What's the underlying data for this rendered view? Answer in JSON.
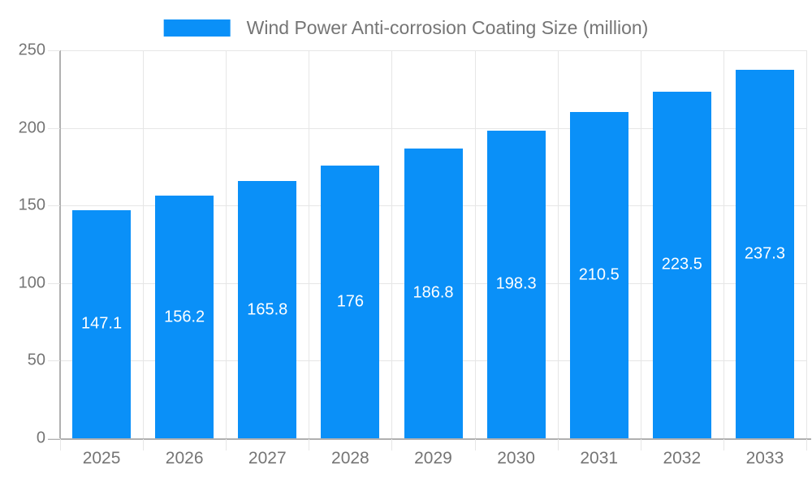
{
  "chart_data": {
    "type": "bar",
    "title": "Wind Power Anti-corrosion Coating Size (million)",
    "categories": [
      "2025",
      "2026",
      "2027",
      "2028",
      "2029",
      "2030",
      "2031",
      "2032",
      "2033"
    ],
    "values": [
      147.1,
      156.2,
      165.8,
      176,
      186.8,
      198.3,
      210.5,
      223.5,
      237.3
    ],
    "value_labels": [
      "147.1",
      "156.2",
      "165.8",
      "176",
      "186.8",
      "198.3",
      "210.5",
      "223.5",
      "237.3"
    ],
    "xlabel": "",
    "ylabel": "",
    "ylim": [
      0,
      250
    ],
    "y_ticks": [
      0,
      50,
      100,
      150,
      200,
      250
    ],
    "grid": "on",
    "legend_position": "top-center",
    "bar_label_position": "center-of-bar",
    "colors": {
      "bar": "#0a90f8",
      "bar_label": "#ffffff",
      "axis_line": "#b0b0b0",
      "gridline": "#e6e6e6",
      "tick_label": "#757575"
    }
  }
}
